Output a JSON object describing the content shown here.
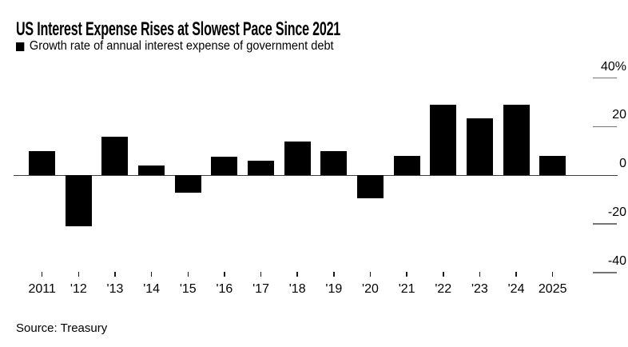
{
  "title": "US Interest Expense Rises at Slowest Pace Since 2021",
  "legend": {
    "label": "Growth rate of annual interest expense of government debt",
    "swatch_color": "#000000"
  },
  "source": "Source: Treasury",
  "chart_data": {
    "type": "bar",
    "title": "US Interest Expense Rises at Slowest Pace Since 2021",
    "series_label": "Growth rate of annual interest expense of government debt",
    "categories": [
      "2011",
      "'12",
      "'13",
      "'14",
      "'15",
      "'16",
      "'17",
      "'18",
      "'19",
      "'20",
      "'21",
      "'22",
      "'23",
      "'24",
      "2025"
    ],
    "values": [
      10.1,
      -21.1,
      15.9,
      3.9,
      -7.2,
      7.7,
      5.9,
      14.0,
      10.0,
      -9.3,
      8.1,
      29.0,
      23.4,
      29.0,
      7.9
    ],
    "unit": "%",
    "ylabel": "",
    "xlabel": "",
    "ylim": [
      -45,
      45
    ],
    "yticks": [
      40,
      20,
      0,
      -20,
      -40
    ],
    "ytick_labels": [
      "40%",
      "20",
      "0",
      "-20",
      "-40"
    ],
    "axis_side": "right",
    "grid": false,
    "bar_color": "#000000",
    "legend_position": "top-left"
  }
}
